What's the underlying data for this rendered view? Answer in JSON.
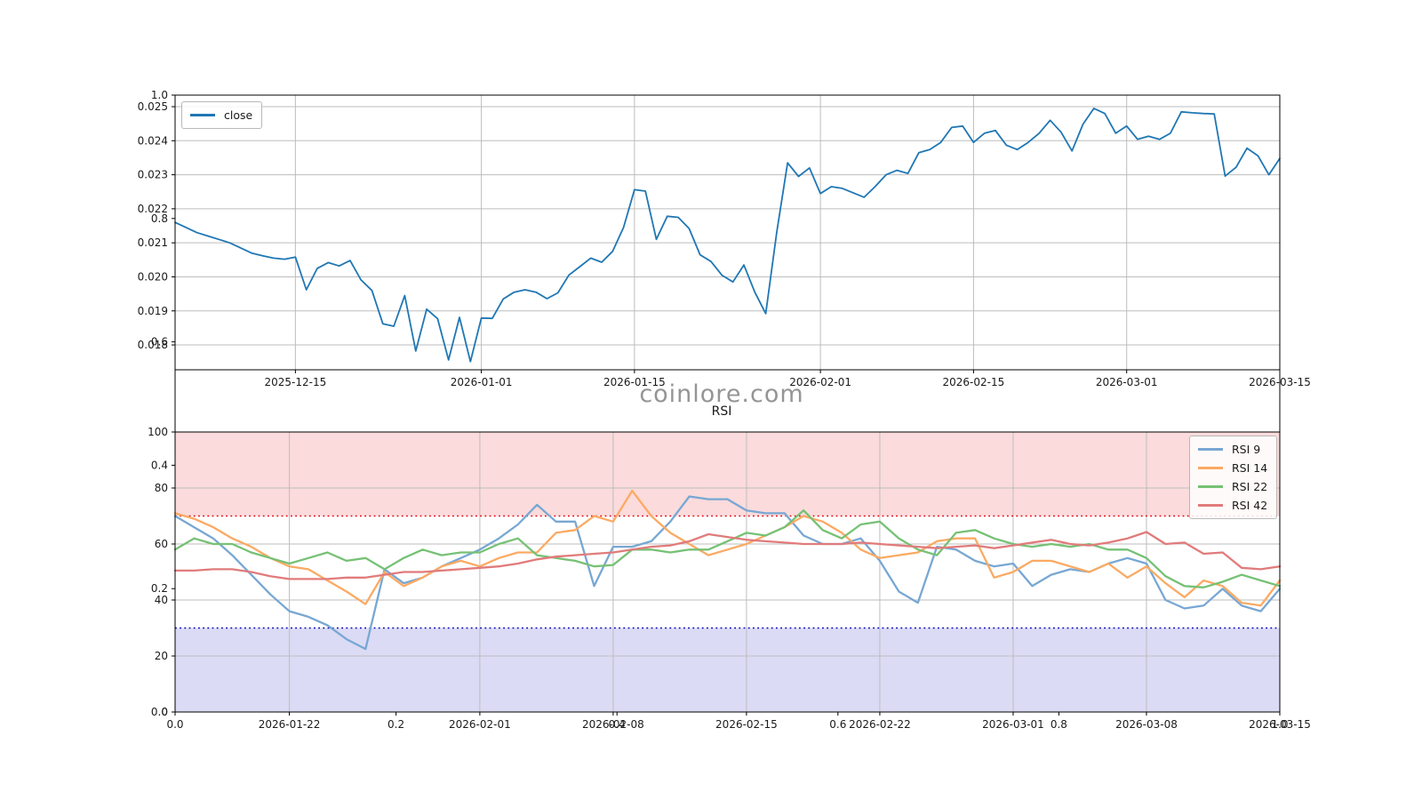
{
  "watermark": "coinlore.com",
  "overlay_axis": {
    "x_tick_labels": [
      "0.0",
      "0.2",
      "0.4",
      "0.6",
      "0.8",
      "1.0"
    ],
    "y_tick_labels": [
      "1.0",
      "0.8",
      "0.6",
      "0.4",
      "0.2",
      "0.0"
    ]
  },
  "chart_data": [
    {
      "type": "line",
      "title": "",
      "legend_position": "upper-left",
      "legend_labels": [
        "close"
      ],
      "x_start_date": "2025-12-04",
      "x_tick_labels": [
        "2025-12-15",
        "2026-01-01",
        "2026-01-15",
        "2026-02-01",
        "2026-02-15",
        "2026-03-01",
        "2026-03-15"
      ],
      "x_tick_positions": [
        11,
        28,
        42,
        59,
        73,
        87,
        101
      ],
      "x_max_index": 101,
      "ylim": [
        0.01727,
        0.02534
      ],
      "y_ticks": [
        {
          "v": 0.018,
          "label": "0.018"
        },
        {
          "v": 0.019,
          "label": "0.019"
        },
        {
          "v": 0.02,
          "label": "0.020"
        },
        {
          "v": 0.021,
          "label": "0.021"
        },
        {
          "v": 0.022,
          "label": "0.022"
        },
        {
          "v": 0.023,
          "label": "0.023"
        },
        {
          "v": 0.024,
          "label": "0.024"
        },
        {
          "v": 0.025,
          "label": "0.025"
        }
      ],
      "grid": true,
      "bands": [],
      "hlines": [],
      "series": [
        {
          "name": "close",
          "color": "#1f77b4",
          "width": 1.8,
          "values": [
            0.0216,
            0.02145,
            0.0213,
            0.0212,
            0.0211,
            0.021,
            0.02085,
            0.0207,
            0.02062,
            0.02055,
            0.02052,
            0.02058,
            0.01962,
            0.02025,
            0.02042,
            0.02032,
            0.02048,
            0.01991,
            0.0196,
            0.01862,
            0.01855,
            0.01945,
            0.01782,
            0.01905,
            0.01877,
            0.01756,
            0.01881,
            0.01751,
            0.01879,
            0.01878,
            0.01935,
            0.01955,
            0.01962,
            0.01955,
            0.01936,
            0.01953,
            0.02005,
            0.0203,
            0.02055,
            0.02043,
            0.02075,
            0.02145,
            0.02256,
            0.02252,
            0.0211,
            0.02178,
            0.02175,
            0.02142,
            0.02065,
            0.02045,
            0.02005,
            0.01985,
            0.02035,
            0.01955,
            0.01892,
            0.0213,
            0.02335,
            0.02295,
            0.0232,
            0.02245,
            0.02265,
            0.0226,
            0.02247,
            0.02234,
            0.02265,
            0.023,
            0.02313,
            0.02304,
            0.02365,
            0.02374,
            0.02395,
            0.02439,
            0.02443,
            0.02395,
            0.02422,
            0.0243,
            0.02387,
            0.02374,
            0.02395,
            0.02422,
            0.0246,
            0.02425,
            0.0237,
            0.02448,
            0.02495,
            0.0248,
            0.02422,
            0.02443,
            0.02404,
            0.02413,
            0.02404,
            0.02422,
            0.02485,
            0.02482,
            0.0248,
            0.02479,
            0.02296,
            0.02322,
            0.02378,
            0.02356,
            0.023,
            0.02348
          ]
        }
      ]
    },
    {
      "type": "line",
      "title": "RSI",
      "legend_position": "upper-right",
      "legend_labels": [
        "RSI 9",
        "RSI 14",
        "RSI 22",
        "RSI 42"
      ],
      "x_start_date": "2026-01-16",
      "x_tick_labels": [
        "2026-01-22",
        "2026-02-01",
        "2026-02-08",
        "2026-02-15",
        "2026-02-22",
        "2026-03-01",
        "2026-03-08",
        "2026-03-15"
      ],
      "x_tick_positions": [
        6,
        16,
        23,
        30,
        37,
        44,
        51,
        58
      ],
      "x_max_index": 58,
      "ylim": [
        0,
        100
      ],
      "y_ticks": [
        {
          "v": 100,
          "label": "100"
        },
        {
          "v": 80,
          "label": "80"
        },
        {
          "v": 60,
          "label": "60"
        },
        {
          "v": 40,
          "label": "40"
        },
        {
          "v": 20,
          "label": "20"
        },
        {
          "v": 0,
          "label": "0"
        }
      ],
      "grid": true,
      "bands": [
        {
          "from": 70,
          "to": 100,
          "color": "#fbdbdc"
        },
        {
          "from": 0,
          "to": 30,
          "color": "#dbdbf5"
        }
      ],
      "hlines": [
        {
          "y": 70,
          "color": "#e8000b"
        },
        {
          "y": 30,
          "color": "#0000b8"
        }
      ],
      "series": [
        {
          "name": "RSI 9",
          "color": "#78a7d3",
          "width": 2.3,
          "values": [
            70,
            66,
            62,
            56,
            49,
            42,
            36,
            34,
            31,
            26,
            22.5,
            51,
            46,
            48,
            52,
            55,
            58,
            62,
            67,
            74,
            68,
            68,
            45,
            59,
            59,
            61,
            68,
            77,
            76,
            76,
            72,
            71,
            71,
            63,
            60,
            60,
            62,
            54,
            43,
            39,
            59,
            58,
            54,
            52,
            53,
            45,
            49,
            51,
            50,
            53,
            55,
            53,
            40,
            37,
            38,
            44,
            38,
            36,
            44
          ]
        },
        {
          "name": "RSI 14",
          "color": "#fbaa63",
          "width": 2.3,
          "values": [
            71,
            69,
            66,
            62,
            59,
            55,
            52,
            51,
            47,
            43,
            38.5,
            50,
            45,
            48,
            52,
            54,
            52,
            55,
            57,
            57,
            64,
            65,
            70,
            68,
            79,
            70,
            64,
            60,
            56,
            58,
            60,
            63,
            66,
            70,
            68,
            64,
            58,
            55,
            56,
            57,
            61,
            62,
            62,
            48,
            50,
            54,
            54,
            52,
            50,
            53,
            48,
            52,
            46,
            41,
            47,
            45,
            39,
            38,
            47
          ]
        },
        {
          "name": "RSI 22",
          "color": "#76c175",
          "width": 2.3,
          "values": [
            58,
            62,
            60,
            60,
            57,
            55,
            53,
            55,
            57,
            54,
            55,
            51,
            55,
            58,
            56,
            57,
            57,
            60,
            62,
            56,
            55,
            54,
            52,
            52.5,
            58,
            58,
            57,
            58,
            58,
            61,
            64,
            63,
            66,
            72,
            65,
            62,
            67,
            68,
            62,
            58,
            56,
            64,
            65,
            62,
            60,
            59,
            60,
            59,
            60,
            58,
            58,
            55,
            48.5,
            45,
            44.5,
            46.5,
            49,
            47,
            45
          ]
        },
        {
          "name": "RSI 42",
          "color": "#e17b7b",
          "width": 2.3,
          "values": [
            50.5,
            50.5,
            51,
            51,
            50,
            48.5,
            47.5,
            47.5,
            47.5,
            48,
            48,
            49,
            50,
            50,
            50.5,
            51,
            51.5,
            52,
            53,
            54.5,
            55.5,
            56,
            56.5,
            57,
            58,
            59,
            59.5,
            61,
            63.5,
            62.5,
            61.5,
            61,
            60.5,
            60,
            60,
            60,
            60.5,
            60,
            59.5,
            59,
            58.5,
            59,
            59.5,
            58.5,
            59.5,
            60.5,
            61.5,
            60,
            59.5,
            60.5,
            62,
            64.3,
            60,
            60.5,
            56.5,
            57,
            51.5,
            51,
            52
          ]
        }
      ]
    }
  ]
}
